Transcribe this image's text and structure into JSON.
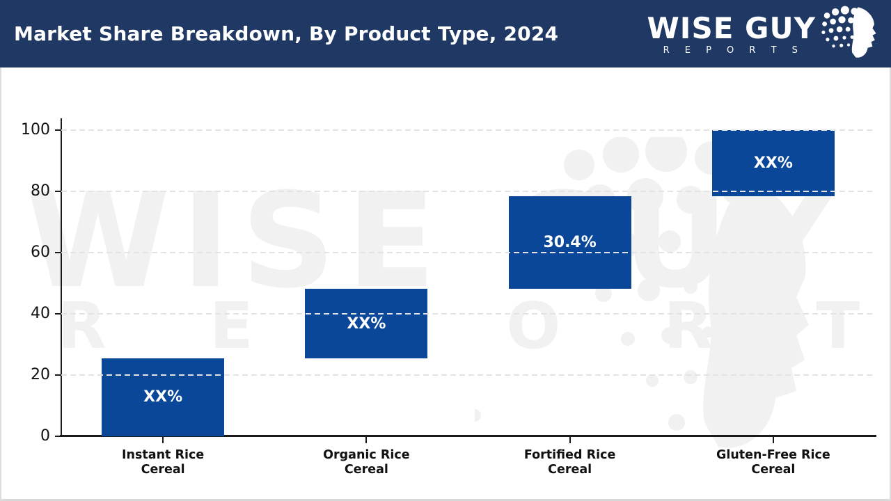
{
  "page": {
    "background": "#ffffff",
    "edge_border_color": "#d9d9d9"
  },
  "header": {
    "background": "#1f3864",
    "title": "Market Share Breakdown, By Product Type, 2024",
    "title_color": "#ffffff",
    "logo": {
      "wordmark": "WISE GUY",
      "subtext": "R E P O R T S"
    }
  },
  "watermark": {
    "line1": "WISE GUY",
    "line2": "R E P O R T S",
    "color": "#f1f1f1"
  },
  "chart_data": {
    "type": "bar",
    "subtype": "waterfall",
    "title": "Market Share Breakdown, By Product Type, 2024",
    "categories": [
      [
        "Instant Rice",
        "Cereal"
      ],
      [
        "Organic Rice",
        "Cereal"
      ],
      [
        "Fortified Rice",
        "Cereal"
      ],
      [
        "Gluten-Free Rice",
        "Cereal"
      ]
    ],
    "segments": [
      {
        "category": "Instant Rice Cereal",
        "start": 0,
        "end": 25.5,
        "value": 25.5,
        "label": "XX%"
      },
      {
        "category": "Organic Rice Cereal",
        "start": 25.5,
        "end": 48.1,
        "value": 22.6,
        "label": "XX%"
      },
      {
        "category": "Fortified Rice Cereal",
        "start": 48.1,
        "end": 78.5,
        "value": 30.4,
        "label": "30.4%"
      },
      {
        "category": "Gluten-Free Rice Cereal",
        "start": 78.5,
        "end": 100,
        "value": 21.5,
        "label": "XX%"
      }
    ],
    "ylim": [
      0,
      100
    ],
    "yticks": [
      0,
      20,
      40,
      60,
      80,
      100
    ],
    "grid": {
      "horizontal": true,
      "style": "dashed",
      "color": "#e3e3e3",
      "drawn_above_bars": true
    },
    "bar_color": "#0b4798",
    "bar_label_color": "#ffffff",
    "xlabel": "",
    "ylabel": ""
  }
}
